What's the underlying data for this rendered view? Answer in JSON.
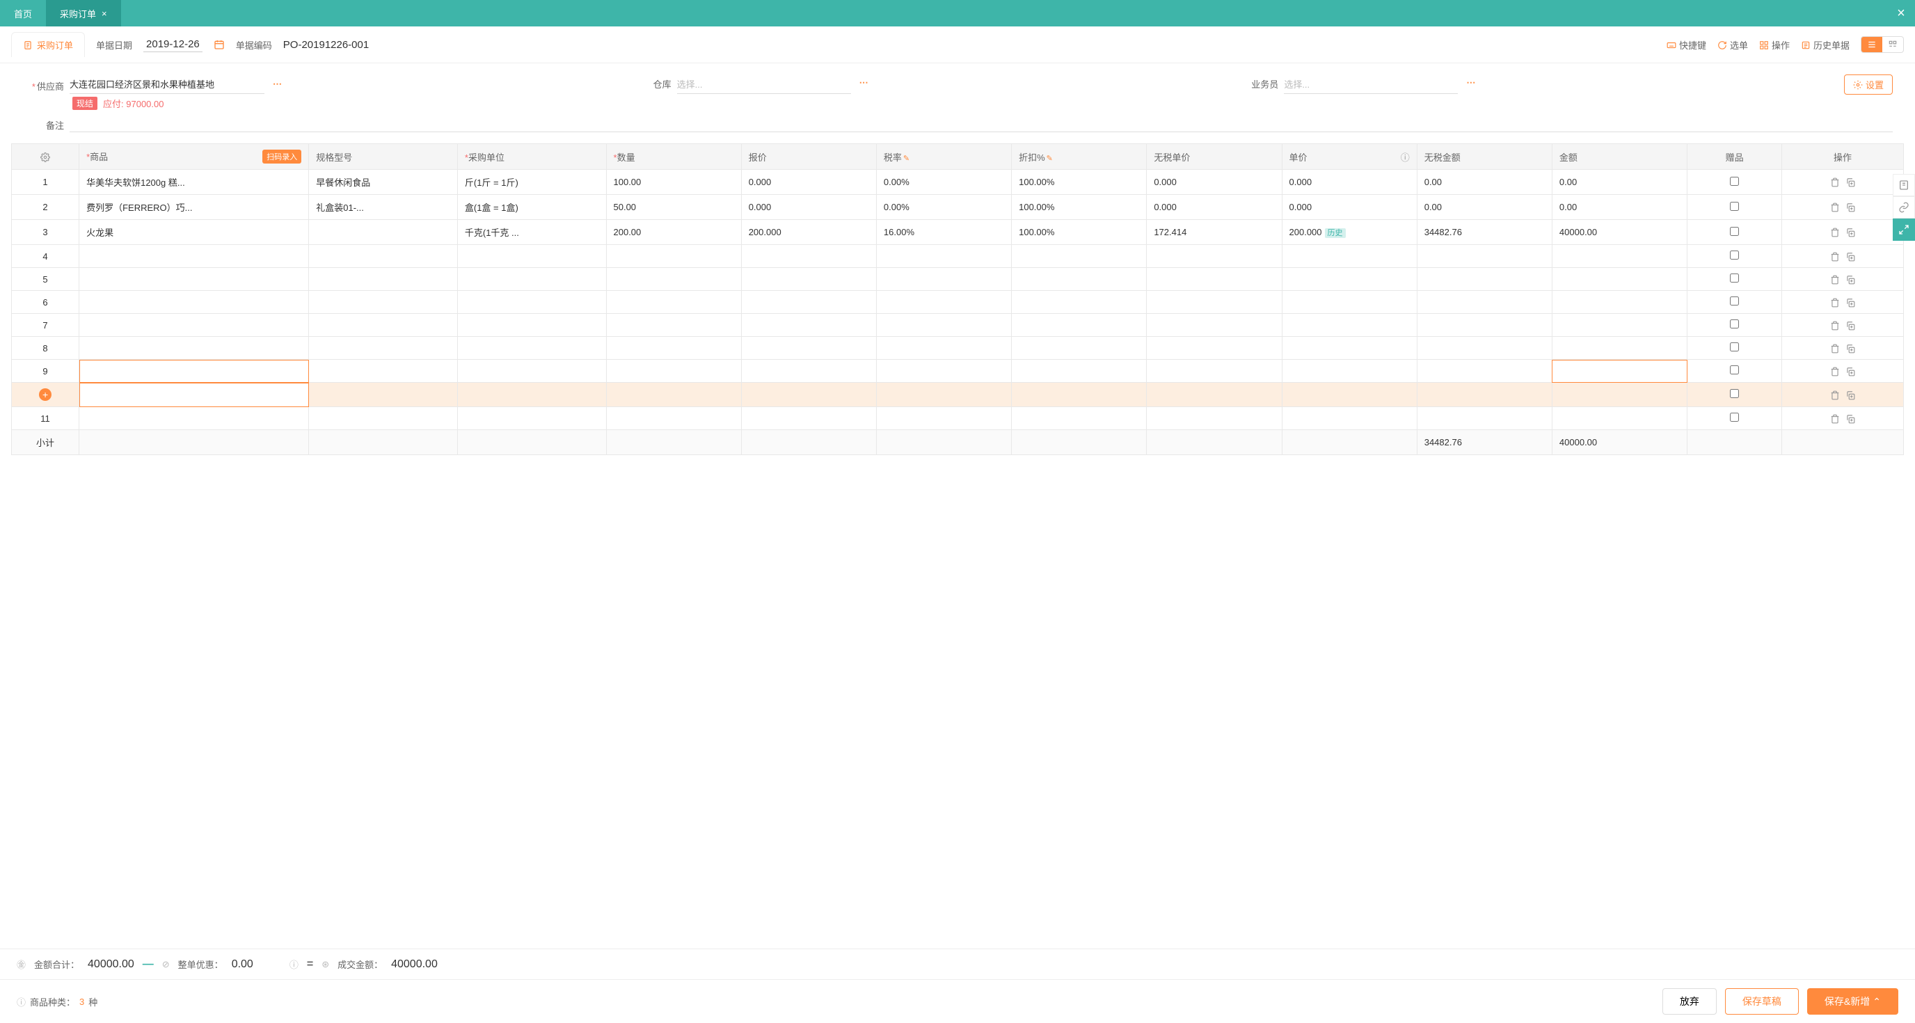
{
  "tabs": {
    "home": "首页",
    "po": "采购订单"
  },
  "subtab": {
    "label": "采购订单"
  },
  "header": {
    "date_label": "单据日期",
    "date_value": "2019-12-26",
    "code_label": "单据编码",
    "code_value": "PO-20191226-001",
    "actions": {
      "shortcut": "快捷键",
      "select_order": "选单",
      "operate": "操作",
      "history": "历史单据"
    }
  },
  "form": {
    "supplier_label": "供应商",
    "supplier_value": "大连花园口经济区景和水果种植基地",
    "warehouse_label": "仓库",
    "warehouse_placeholder": "选择...",
    "salesman_label": "业务员",
    "salesman_placeholder": "选择...",
    "settings_btn": "设置",
    "badge": "现结",
    "payable_label": "应付:",
    "payable_value": "97000.00",
    "remark_label": "备注"
  },
  "table": {
    "columns": {
      "gear": "",
      "product": "商品",
      "scan_badge": "扫码录入",
      "spec": "规格型号",
      "unit": "采购单位",
      "qty": "数量",
      "quote": "报价",
      "tax_rate": "税率",
      "discount": "折扣%",
      "untaxed_price": "无税单价",
      "price": "单价",
      "untaxed_amt": "无税金额",
      "amount": "金额",
      "gift": "赠品",
      "ops": "操作"
    },
    "rows": [
      {
        "idx": "1",
        "product": "华美华夫软饼1200g 糕...",
        "spec": "早餐休闲食品",
        "unit": "斤(1斤 = 1斤)",
        "qty": "100.00",
        "quote": "0.000",
        "tax": "0.00%",
        "disc": "100.00%",
        "utp": "0.000",
        "price": "0.000",
        "uta": "0.00",
        "amt": "0.00",
        "history": false
      },
      {
        "idx": "2",
        "product": "费列罗（FERRERO）巧...",
        "spec": "礼盒装01-...",
        "unit": "盒(1盒 = 1盒)",
        "qty": "50.00",
        "quote": "0.000",
        "tax": "0.00%",
        "disc": "100.00%",
        "utp": "0.000",
        "price": "0.000",
        "uta": "0.00",
        "amt": "0.00",
        "history": false
      },
      {
        "idx": "3",
        "product": "火龙果",
        "spec": "",
        "unit": "千克(1千克 ...",
        "qty": "200.00",
        "quote": "200.000",
        "tax": "16.00%",
        "disc": "100.00%",
        "utp": "172.414",
        "price": "200.000",
        "uta": "34482.76",
        "amt": "40000.00",
        "history": true
      }
    ],
    "history_badge": "历史",
    "empty_rows": [
      "4",
      "5",
      "6",
      "7",
      "8",
      "9"
    ],
    "highlight_row_idx": "",
    "row_11": "11",
    "subtotal_label": "小计",
    "subtotal_uta": "34482.76",
    "subtotal_amt": "40000.00"
  },
  "totals": {
    "total_label": "金额合计：",
    "total_value": "40000.00",
    "discount_label": "整单优惠：",
    "discount_value": "0.00",
    "deal_label": "成交金额：",
    "deal_value": "40000.00"
  },
  "footer": {
    "kinds_label": "商品种类：",
    "kinds_count": "3",
    "kinds_unit": "种",
    "abandon": "放弃",
    "save_draft": "保存草稿",
    "save_new": "保存&新增"
  },
  "colors": {
    "primary": "#3eb5a9",
    "accent": "#ff8a3d",
    "danger": "#f56c6c"
  }
}
